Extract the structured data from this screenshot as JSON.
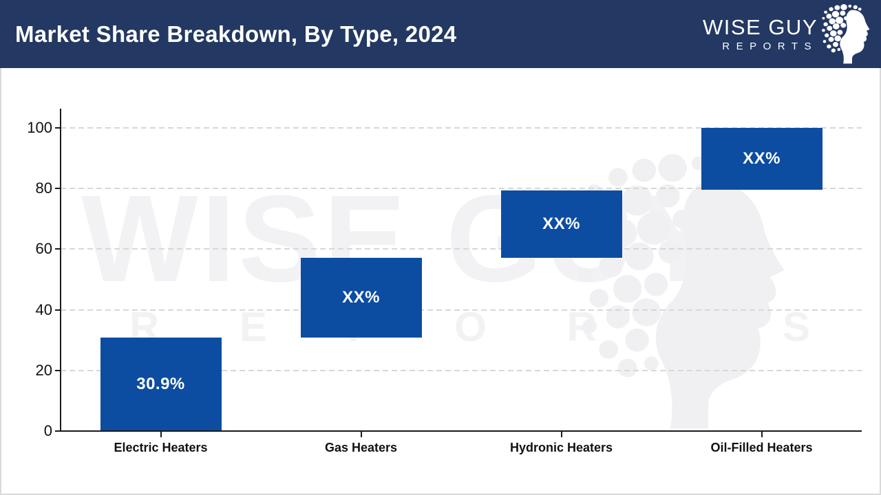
{
  "header": {
    "title": "Market Share Breakdown, By Type, 2024",
    "background_color": "#233862",
    "logo": {
      "line1": "WISE GUY",
      "line2": "REPORTS"
    }
  },
  "watermark": {
    "line1": "WISE GUY",
    "line2": "R E P O R T S"
  },
  "chart_data": {
    "type": "bar",
    "variant": "floating-segment (waterfall style market share)",
    "title": "Market Share Breakdown, By Type, 2024",
    "categories": [
      "Electric Heaters",
      "Gas Heaters",
      "Hydronic Heaters",
      "Oil-Filled Heaters"
    ],
    "segments": [
      {
        "category": "Electric Heaters",
        "start": 0,
        "end": 30.9,
        "label": "30.9%"
      },
      {
        "category": "Gas Heaters",
        "start": 30.9,
        "end": 57.2,
        "label": "XX%"
      },
      {
        "category": "Hydronic Heaters",
        "start": 57.2,
        "end": 79.3,
        "label": "XX%"
      },
      {
        "category": "Oil-Filled Heaters",
        "start": 79.6,
        "end": 100,
        "label": "XX%"
      }
    ],
    "yticks": [
      0,
      20,
      40,
      60,
      80,
      100
    ],
    "ylim": [
      0,
      105
    ],
    "xlabel": "",
    "ylabel": "",
    "grid": "horizontal dashed lines at each y tick, drawn above watermark, below bars",
    "grid_color": "#D7D7D7",
    "bar_color": "#0C4DA2",
    "bar_label_color": "#FFFFFF",
    "axis_color": "#1A1A1A",
    "legend": "none"
  }
}
